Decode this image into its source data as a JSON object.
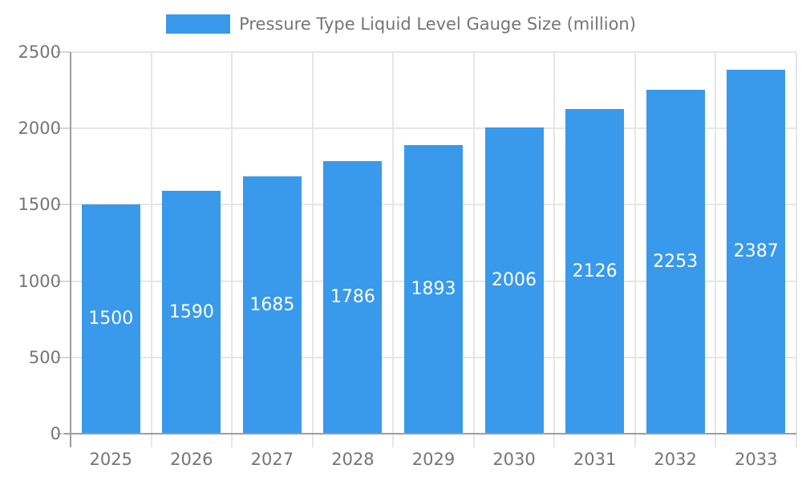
{
  "legend": {
    "label": "Pressure Type Liquid Level Gauge Size (million)"
  },
  "chart_data": {
    "type": "bar",
    "title": "Pressure Type Liquid Level Gauge Size (million)",
    "categories": [
      "2025",
      "2026",
      "2027",
      "2028",
      "2029",
      "2030",
      "2031",
      "2032",
      "2033"
    ],
    "series": [
      {
        "name": "Pressure Type Liquid Level Gauge Size (million)",
        "values": [
          1500,
          1590,
          1685,
          1786,
          1893,
          2006,
          2126,
          2253,
          2387
        ]
      }
    ],
    "value_labels_shown": true,
    "value_label_position": "inside-center",
    "xlabel": "",
    "ylabel": "",
    "ylim": [
      0,
      2500
    ],
    "yticks": [
      0,
      500,
      1000,
      1500,
      2000,
      2500
    ],
    "grid": true,
    "legend_position": "top-center",
    "colors": {
      "bar": "#3999eb",
      "bar_label": "#ffffff",
      "axis_text": "#757575",
      "grid_line": "#e6e6e6",
      "tick_mark": "#d6d6d6",
      "axis_line": "#9e9e9e",
      "background": "#ffffff"
    }
  }
}
